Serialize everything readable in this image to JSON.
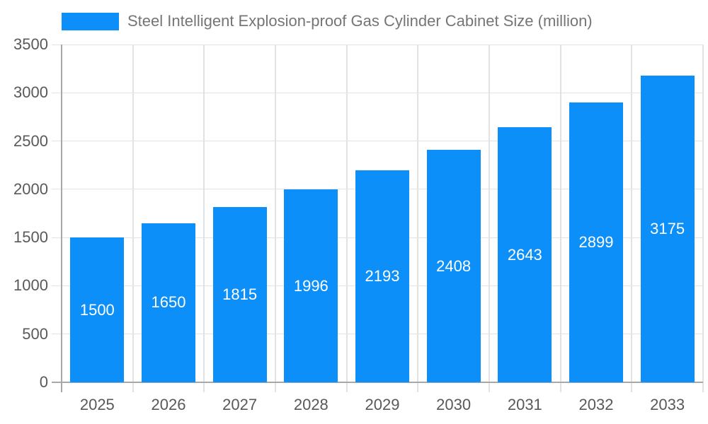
{
  "legend": {
    "swatch_color": "#0d8ff9",
    "label_color": "#757575"
  },
  "colors": {
    "bar": "#0d8ff9",
    "grid": "#e2e2e2",
    "axis": "#a8a8a8",
    "tick_label": "#595959",
    "bar_label": "#ffffff",
    "background": "#ffffff"
  },
  "chart_data": {
    "type": "bar",
    "title": "Steel Intelligent Explosion-proof Gas Cylinder Cabinet Size (million)",
    "categories": [
      "2025",
      "2026",
      "2027",
      "2028",
      "2029",
      "2030",
      "2031",
      "2032",
      "2033"
    ],
    "values": [
      1500,
      1650,
      1815,
      1996,
      2193,
      2408,
      2643,
      2899,
      3175
    ],
    "xlabel": "",
    "ylabel": "",
    "ylim": [
      0,
      3500
    ],
    "ytick_step": 500,
    "ytick_labels": [
      "0",
      "500",
      "1000",
      "1500",
      "2000",
      "2500",
      "3000",
      "3500"
    ],
    "grid": true,
    "legend_position": "top-left",
    "value_labels": "inside-center"
  }
}
